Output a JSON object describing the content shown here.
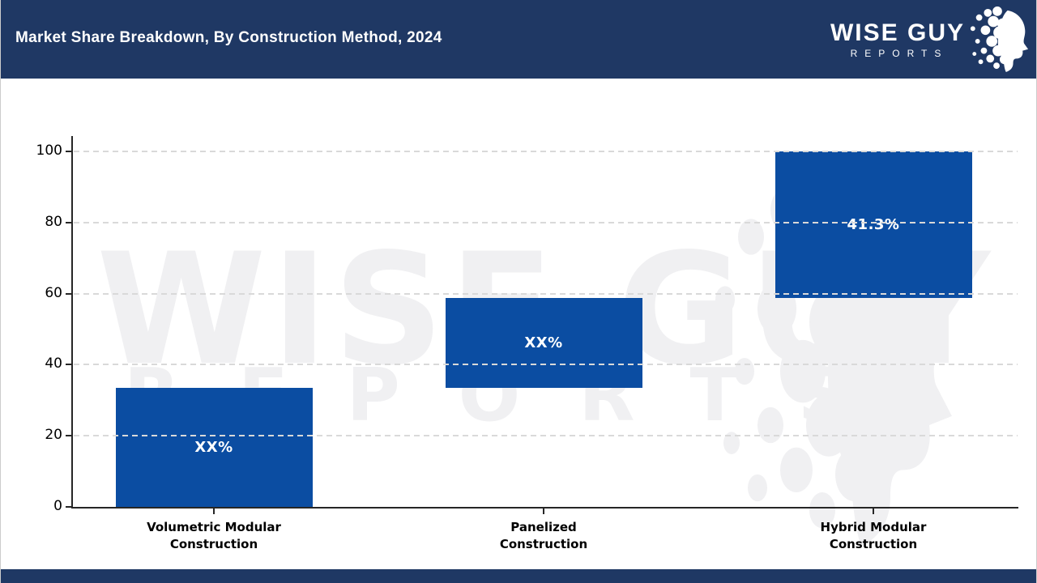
{
  "header": {
    "title": "Market Share Breakdown, By Construction Method, 2024",
    "background_color": "#1f3864",
    "brand": {
      "line1": "WISE GUY",
      "line2": "REPORTS",
      "face_icon": "dotted-head-profile-icon"
    }
  },
  "watermark": {
    "line1": "WISE GUY",
    "line2": "REPORTS",
    "color": "#f0f0f2"
  },
  "chart_data": {
    "type": "bar",
    "subtype": "stepped-waterfall",
    "title": "Market Share Breakdown, By Construction Method, 2024",
    "categories": [
      "Volumetric Modular Construction",
      "Panelized Construction",
      "Hybrid Modular Construction"
    ],
    "category_lines": [
      [
        "Volumetric Modular",
        "Construction"
      ],
      [
        "Panelized",
        "Construction"
      ],
      [
        "Hybrid Modular",
        "Construction"
      ]
    ],
    "segments": [
      {
        "category": "Volumetric Modular Construction",
        "label": "XX%",
        "start": 0,
        "end": 33.5,
        "value_est": 33.5
      },
      {
        "category": "Panelized Construction",
        "label": "XX%",
        "start": 33.5,
        "end": 58.7,
        "value_est": 25.2
      },
      {
        "category": "Hybrid Modular Construction",
        "label": "41.3%",
        "start": 58.7,
        "end": 100,
        "value_est": 41.3
      }
    ],
    "xlabel": "",
    "ylabel": "",
    "ylim": [
      0,
      100
    ],
    "yticks": [
      0,
      20,
      40,
      60,
      80,
      100
    ],
    "grid": "horizontal-dashed-drawn-over-bars",
    "legend": "none",
    "bar_color": "#0b4da2",
    "bar_label_color": "#ffffff",
    "axis_color": "#262626",
    "grid_color": "#d9d9d9"
  },
  "footer": {
    "background_color": "#1f3864"
  }
}
